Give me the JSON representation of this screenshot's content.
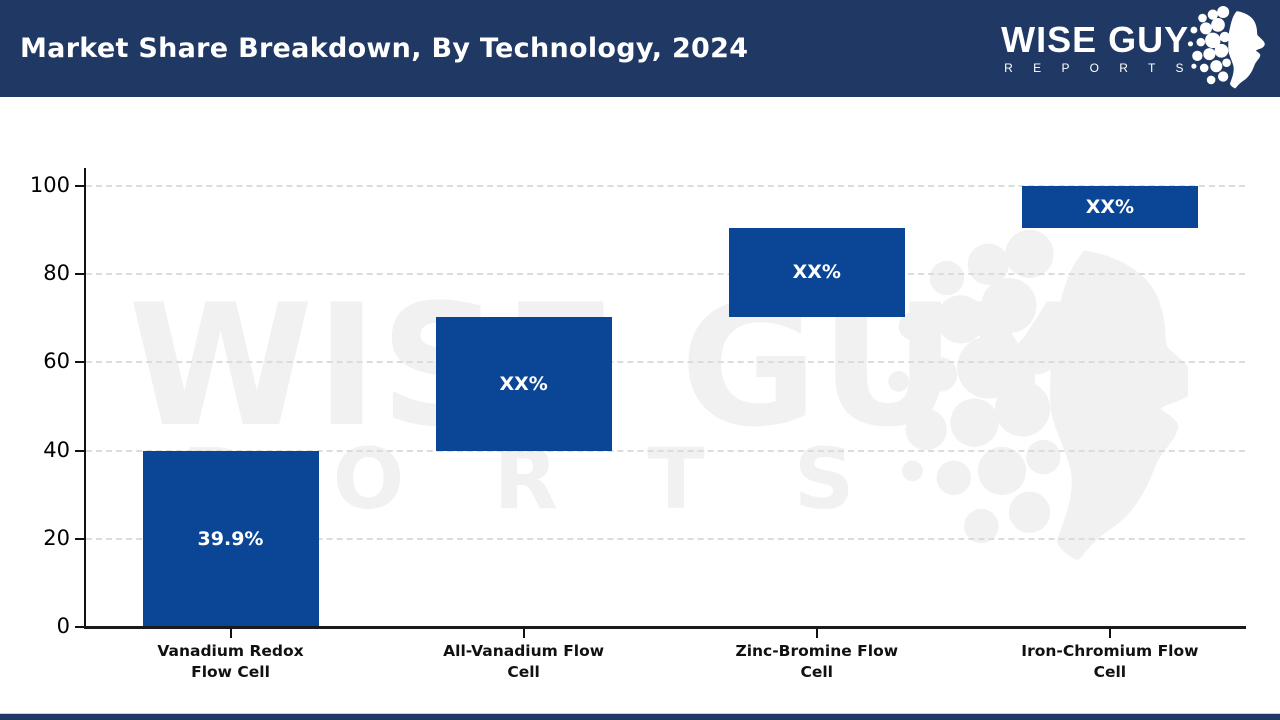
{
  "header": {
    "title": "Market Share Breakdown, By Technology, 2024",
    "bg_color": "#1f3864",
    "logo": {
      "line1": "WISE GUY",
      "line2": "R E P O R T S"
    }
  },
  "watermark": {
    "line1": "WISE GUY",
    "line2": "P O R T S"
  },
  "footer": {
    "bg_color": "#1f3864"
  },
  "chart_data": {
    "type": "bar",
    "subtype": "waterfall",
    "title": "Market Share Breakdown, By Technology, 2024",
    "xlabel": "",
    "ylabel": "",
    "categories": [
      "Vanadium Redox\nFlow Cell",
      "All-Vanadium Flow\nCell",
      "Zinc-Bromine Flow\nCell",
      "Iron-Chromium Flow\nCell"
    ],
    "segments": [
      {
        "category": "Vanadium Redox Flow Cell",
        "start": 0,
        "end": 39.9,
        "label": "39.9%"
      },
      {
        "category": "All-Vanadium Flow Cell",
        "start": 39.9,
        "end": 70.4,
        "label": "XX%"
      },
      {
        "category": "Zinc-Bromine Flow Cell",
        "start": 70.4,
        "end": 90.5,
        "label": "XX%"
      },
      {
        "category": "Iron-Chromium Flow Cell",
        "start": 90.5,
        "end": 100,
        "label": "XX%"
      }
    ],
    "yticks": [
      0,
      20,
      40,
      60,
      80,
      100
    ],
    "ylim": [
      0,
      104
    ],
    "grid": "horizontal-dashed",
    "gridline_color": "#dcdcdc",
    "bar_color": "#0b4595",
    "value_label_color": "#ffffff",
    "legend": "none"
  }
}
